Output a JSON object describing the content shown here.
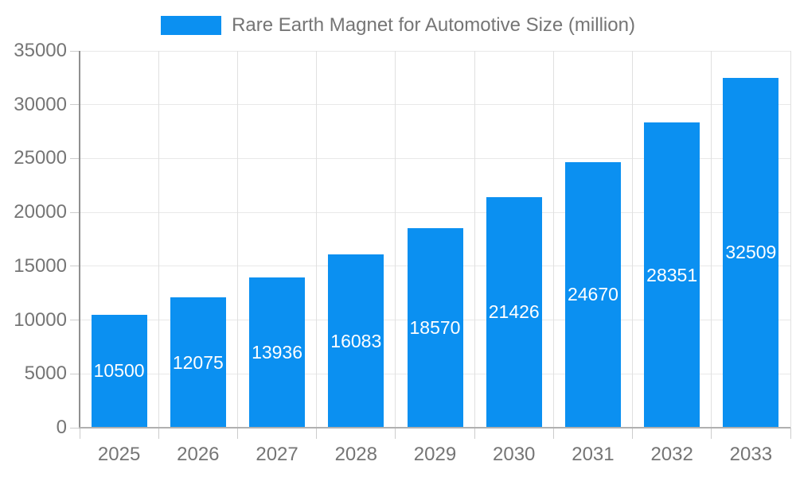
{
  "legend": {
    "label": "Rare Earth Magnet for Automotive Size (million)"
  },
  "chart_data": {
    "type": "bar",
    "title": "Rare Earth Magnet for Automotive Size (million)",
    "categories": [
      "2025",
      "2026",
      "2027",
      "2028",
      "2029",
      "2030",
      "2031",
      "2032",
      "2033"
    ],
    "values": [
      10500,
      12075,
      13936,
      16083,
      18570,
      21426,
      24670,
      28351,
      32509
    ],
    "xlabel": "",
    "ylabel": "",
    "ylim": [
      0,
      35000
    ],
    "yticks": [
      0,
      5000,
      10000,
      15000,
      20000,
      25000,
      30000,
      35000
    ],
    "grid": true,
    "legend_position": "top-center",
    "value_labels": "centered-inside-bars"
  },
  "colors": {
    "bar": "#0b90f1",
    "value_label": "#ffffff",
    "axis_text": "#757575",
    "grid_h": "#e8e8e8",
    "grid_v": "#e0e0e0",
    "tick": "#cccccc",
    "axis_line": "#8f8f8f",
    "baseline": "#b0b0b0"
  }
}
